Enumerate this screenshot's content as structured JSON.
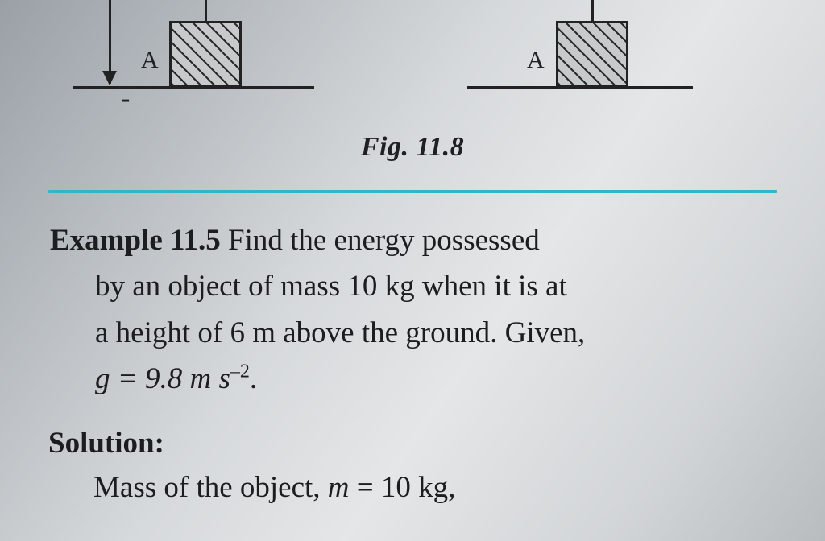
{
  "figure": {
    "left_label": "A",
    "right_label": "A",
    "caption": "Fig. 11.8",
    "hatch_angle_deg": 45,
    "block_border_color": "#222222",
    "ground_color": "#222222",
    "background_gradient": [
      "#9aa0a6",
      "#e4e6e7",
      "#b8bcbf"
    ]
  },
  "rule_color": "#2fb6c9",
  "example": {
    "lead": "Example 11.5",
    "line1_rest": " Find the energy possessed",
    "line2": "by an object of mass 10 kg when it is at",
    "line3": "a height of 6 m above the ground. Given,",
    "line4_prefix": "g = 9.8 m s",
    "line4_exp": "–2",
    "line4_suffix": "."
  },
  "solution": {
    "heading": "Solution:",
    "cutoff_prefix": "Mass of the object, ",
    "cutoff_var": "m",
    "cutoff_rest": " = 10 kg,"
  },
  "typography": {
    "body_fontsize_pt": 28,
    "caption_fontsize_pt": 26,
    "font_family": "Georgia / Bookman style serif",
    "text_color": "#1c1d1f"
  }
}
